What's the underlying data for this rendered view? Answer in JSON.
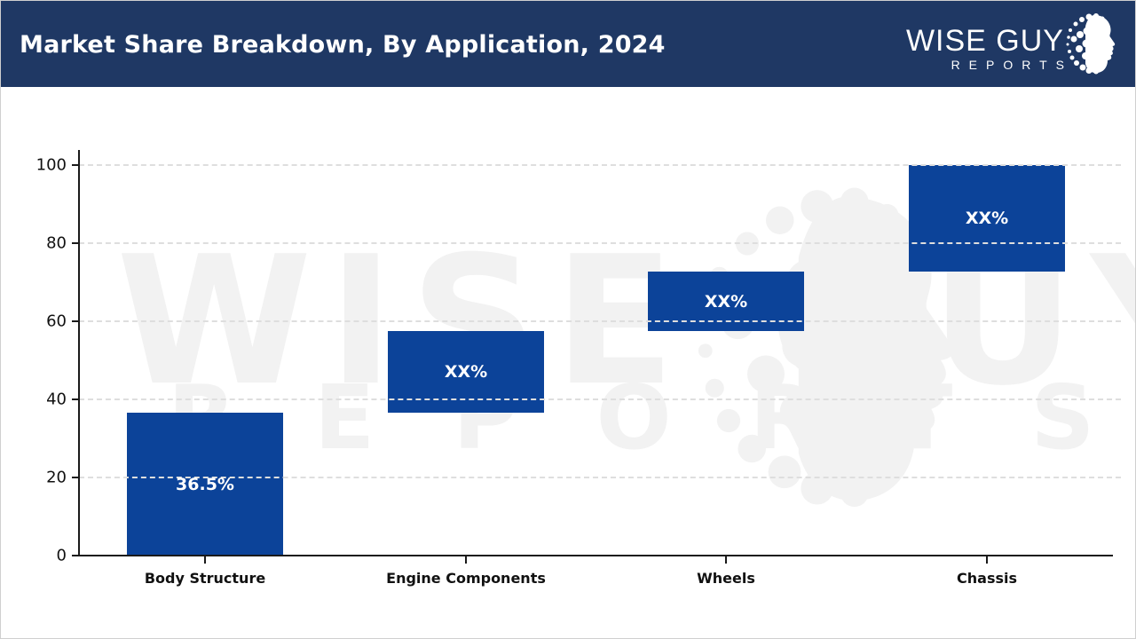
{
  "header": {
    "title": "Market Share Breakdown, By Application, 2024"
  },
  "logo": {
    "line1": "WISE GUY",
    "line2": "REPORTS"
  },
  "watermark": {
    "line1": "WISE GUY",
    "line2": "REPORTS"
  },
  "colors": {
    "header_bg": "#1f3864",
    "bar": "#0c4399",
    "bar_label": "#ffffff",
    "grid": "#dedede",
    "axis": "#1a1a1a",
    "watermark": "#f2f2f2",
    "frame_border": "#cfcfcf"
  },
  "chart_data": {
    "type": "bar",
    "subtype": "waterfall-floating-bars",
    "title": "Market Share Breakdown, By Application, 2024",
    "categories": [
      "Body Structure",
      "Engine Components",
      "Wheels",
      "Chassis"
    ],
    "segments": [
      {
        "category": "Body Structure",
        "start": 0,
        "end": 36.5,
        "label": "36.5%"
      },
      {
        "category": "Engine Components",
        "start": 36.5,
        "end": 57.5,
        "label": "XX%"
      },
      {
        "category": "Wheels",
        "start": 57.5,
        "end": 72.7,
        "label": "XX%"
      },
      {
        "category": "Chassis",
        "start": 72.7,
        "end": 100,
        "label": "XX%"
      }
    ],
    "yticks": [
      0,
      20,
      40,
      60,
      80,
      100
    ],
    "ylim": [
      0,
      105
    ],
    "xlabel": "",
    "ylabel": "",
    "grid": "dashed-horizontal-over-bars",
    "legend": "none"
  }
}
